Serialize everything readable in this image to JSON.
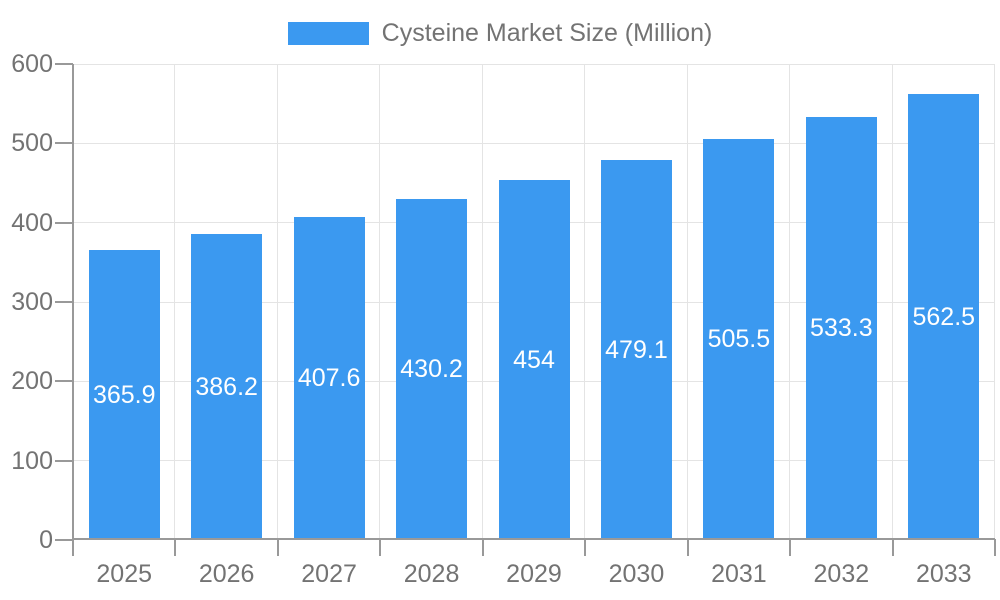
{
  "chart_data": {
    "type": "bar",
    "title": "",
    "legend": "Cysteine Market Size (Million)",
    "legend_position": "top-center",
    "categories": [
      "2025",
      "2026",
      "2027",
      "2028",
      "2029",
      "2030",
      "2031",
      "2032",
      "2033"
    ],
    "series": [
      {
        "name": "Cysteine Market Size (Million)",
        "values": [
          365.9,
          386.2,
          407.6,
          430.2,
          454,
          479.1,
          505.5,
          533.3,
          562.5
        ]
      }
    ],
    "bar_value_labels": [
      "365.9",
      "386.2",
      "407.6",
      "430.2",
      "454",
      "479.1",
      "505.5",
      "533.3",
      "562.5"
    ],
    "xlabel": "",
    "ylabel": "",
    "ylim": [
      0,
      600
    ],
    "yticks": [
      0,
      100,
      200,
      300,
      400,
      500,
      600
    ],
    "grid": true,
    "colors": {
      "bar": "#3B99F0",
      "axis": "#999999",
      "grid": "#E4E4E4",
      "label": "#737373",
      "bar_label": "#FFFFFF",
      "background": "#FFFFFF"
    }
  }
}
